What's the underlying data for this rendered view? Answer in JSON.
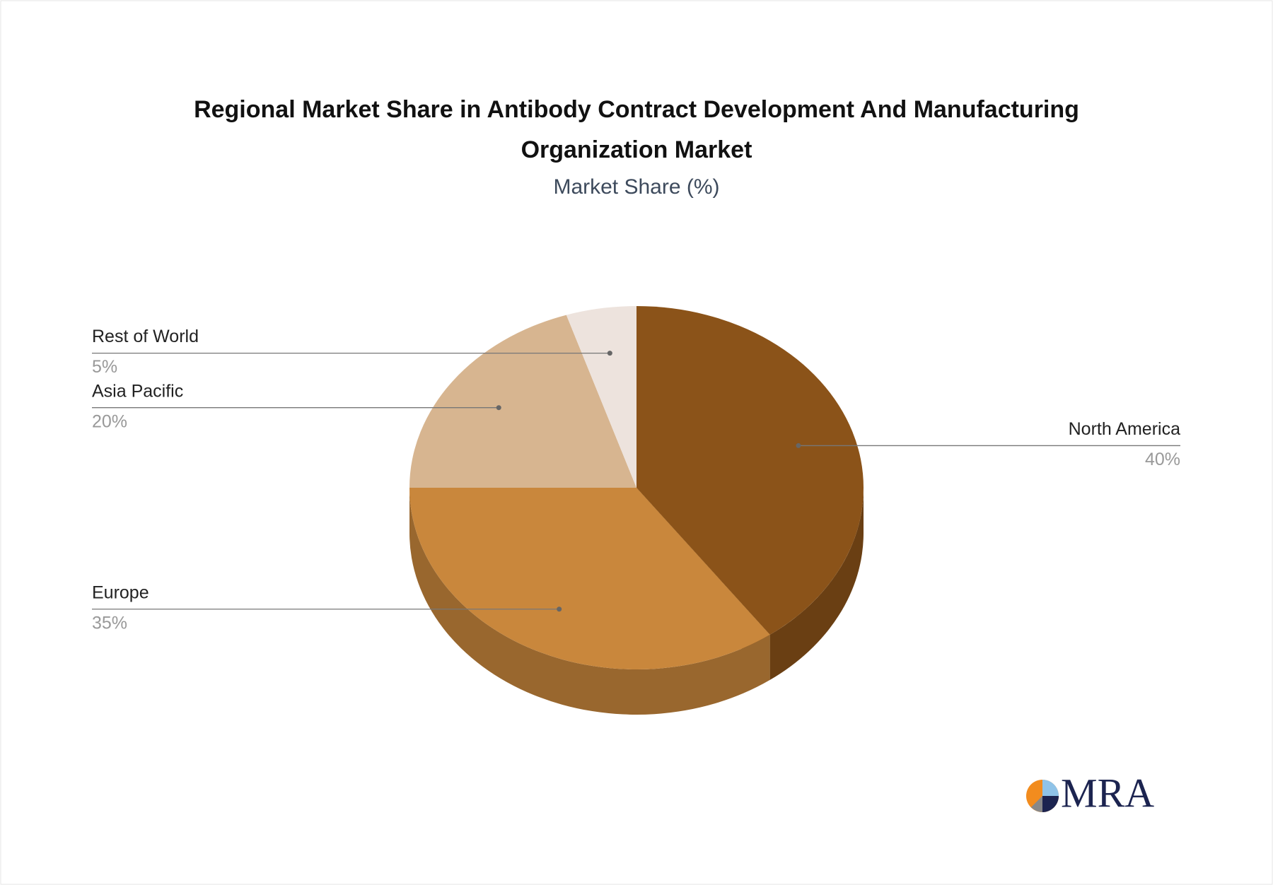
{
  "chart_data": {
    "type": "pie",
    "title": [
      "Regional Market Share in Antibody Contract Development And Manufacturing",
      "Organization Market"
    ],
    "subtitle": "Market Share (%)",
    "categories": [
      "North America",
      "Europe",
      "Asia Pacific",
      "Rest of World"
    ],
    "values": [
      40,
      35,
      20,
      5
    ],
    "value_labels": [
      "40%",
      "35%",
      "20%",
      "5%"
    ],
    "colors": [
      "#8b5319",
      "#c9873c",
      "#d7b590",
      "#ede3dd"
    ]
  },
  "brand": "MRA"
}
